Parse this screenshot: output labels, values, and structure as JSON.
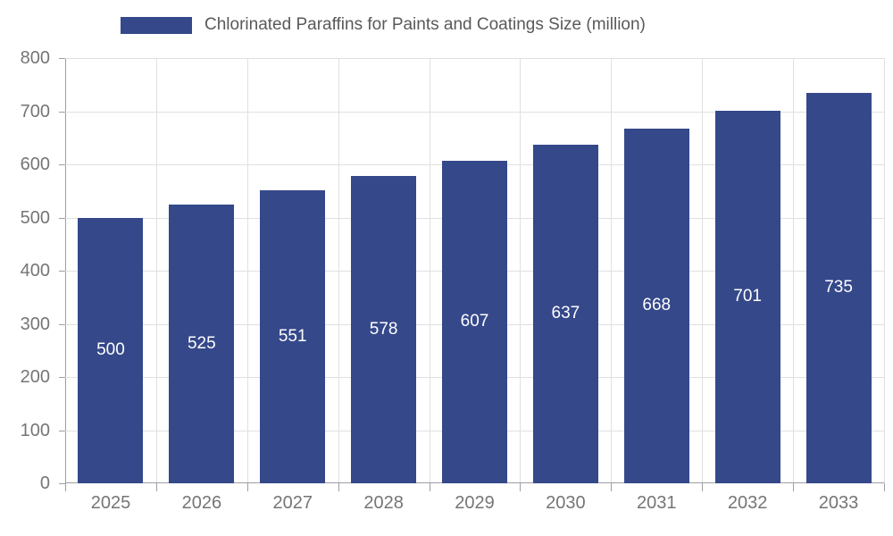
{
  "chart": {
    "colors": {
      "bar": "#35488a",
      "legend_text": "#595959",
      "tick_text": "#757575",
      "grid": "#e0e0e0",
      "axis": "#9e9ea4",
      "bar_label": "#ffffff"
    }
  },
  "chart_data": {
    "type": "bar",
    "title": "Chlorinated Paraffins for Paints and Coatings Size (million)",
    "legend": [
      "Chlorinated Paraffins for Paints and Coatings Size (million)"
    ],
    "legend_position": "top",
    "categories": [
      "2025",
      "2026",
      "2027",
      "2028",
      "2029",
      "2030",
      "2031",
      "2032",
      "2033"
    ],
    "values": [
      500,
      525,
      551,
      578,
      607,
      637,
      668,
      701,
      735
    ],
    "bar_labels": [
      500,
      525,
      551,
      578,
      607,
      637,
      668,
      701,
      735
    ],
    "xlabel": "",
    "ylabel": "",
    "ylim": [
      0,
      800
    ],
    "y_ticks": [
      0,
      100,
      200,
      300,
      400,
      500,
      600,
      700,
      800
    ],
    "grid": true
  }
}
